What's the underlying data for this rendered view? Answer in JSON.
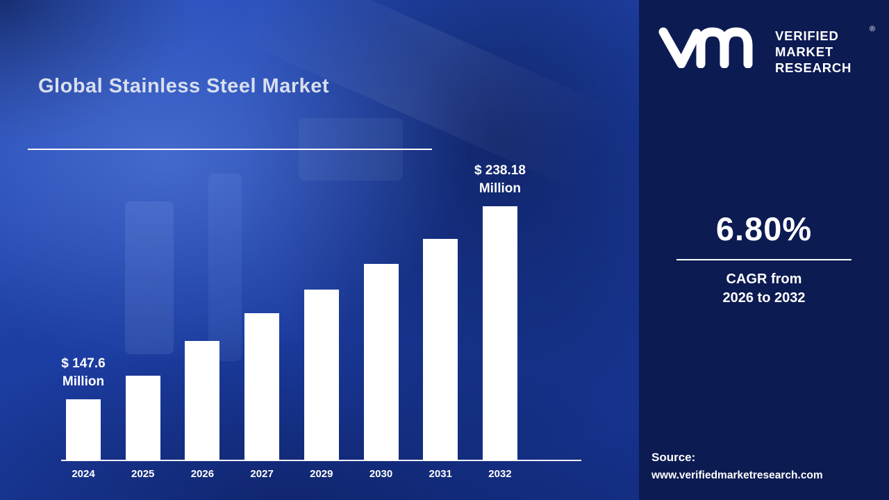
{
  "header": {
    "title": "Global Stainless Steel Market"
  },
  "brand": {
    "logo": "vm-monogram",
    "name_lines": [
      "VERIFIED",
      "MARKET",
      "RESEARCH"
    ],
    "registered_mark": "®"
  },
  "stats": {
    "cagr_value": "6.80%",
    "cagr_label_line1": "CAGR from",
    "cagr_label_line2": "2026 to 2032"
  },
  "source": {
    "label": "Source:",
    "url": "www.verifiedmarketresearch.com"
  },
  "colors": {
    "panel_background": "#0c1b52",
    "main_background": "#1d3fa6",
    "bar_color": "#ffffff",
    "text_color": "#ffffff"
  },
  "chart_data": {
    "type": "bar",
    "title": "Global Stainless Steel Market",
    "categories": [
      "2024",
      "2025",
      "2026",
      "2027",
      "2029",
      "2030",
      "2031",
      "2032"
    ],
    "values": [
      147.6,
      158.7,
      175,
      188,
      199,
      211,
      223,
      238.18
    ],
    "unit": "USD Million",
    "xlabel": "",
    "ylabel": "",
    "gridlines": false,
    "y_axis_visible": false,
    "legend": "none",
    "bar_color": "#ffffff",
    "annotations": {
      "first": {
        "line1": "$ 147.6",
        "line2": "Million"
      },
      "last": {
        "line1": "$ 238.18",
        "line2": "Million"
      }
    }
  }
}
